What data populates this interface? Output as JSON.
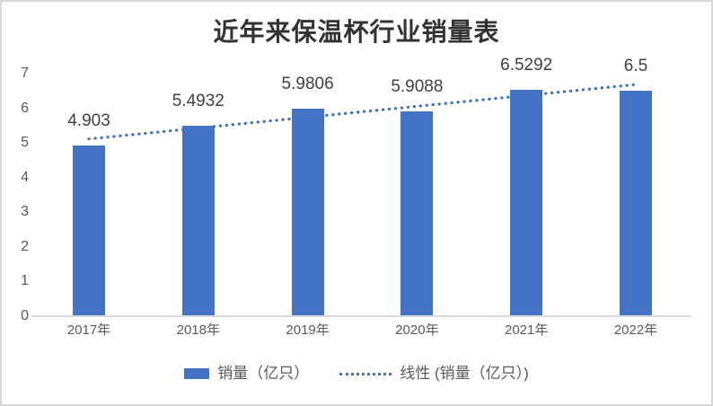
{
  "chart_data": {
    "type": "bar",
    "title": "近年来保温杯行业销量表",
    "categories": [
      "2017年",
      "2018年",
      "2019年",
      "2020年",
      "2021年",
      "2022年"
    ],
    "series": [
      {
        "name": "销量（亿只）",
        "values": [
          4.903,
          5.4932,
          5.9806,
          5.9088,
          6.5292,
          6.5
        ],
        "data_labels": [
          "4.903",
          "5.4932",
          "5.9806",
          "5.9088",
          "6.5292",
          "6.5"
        ]
      }
    ],
    "trendline": {
      "name": "线性 (销量（亿只）)",
      "style": "dotted",
      "based_on_series": "销量（亿只）"
    },
    "xlabel": "",
    "ylabel": "",
    "y_ticks": [
      "0",
      "1",
      "2",
      "3",
      "4",
      "5",
      "6",
      "7"
    ],
    "ylim": [
      0,
      7
    ],
    "grid": false,
    "legend_position": "bottom",
    "colors": {
      "bar": "#4472C4",
      "trend": "#4472C4",
      "axis_text": "#595959",
      "data_label_text": "#404040",
      "axis_line": "#D9D9D9",
      "frame_border": "#D8D8D8",
      "title_text": "#333333",
      "background": "#FFFFFF"
    }
  }
}
